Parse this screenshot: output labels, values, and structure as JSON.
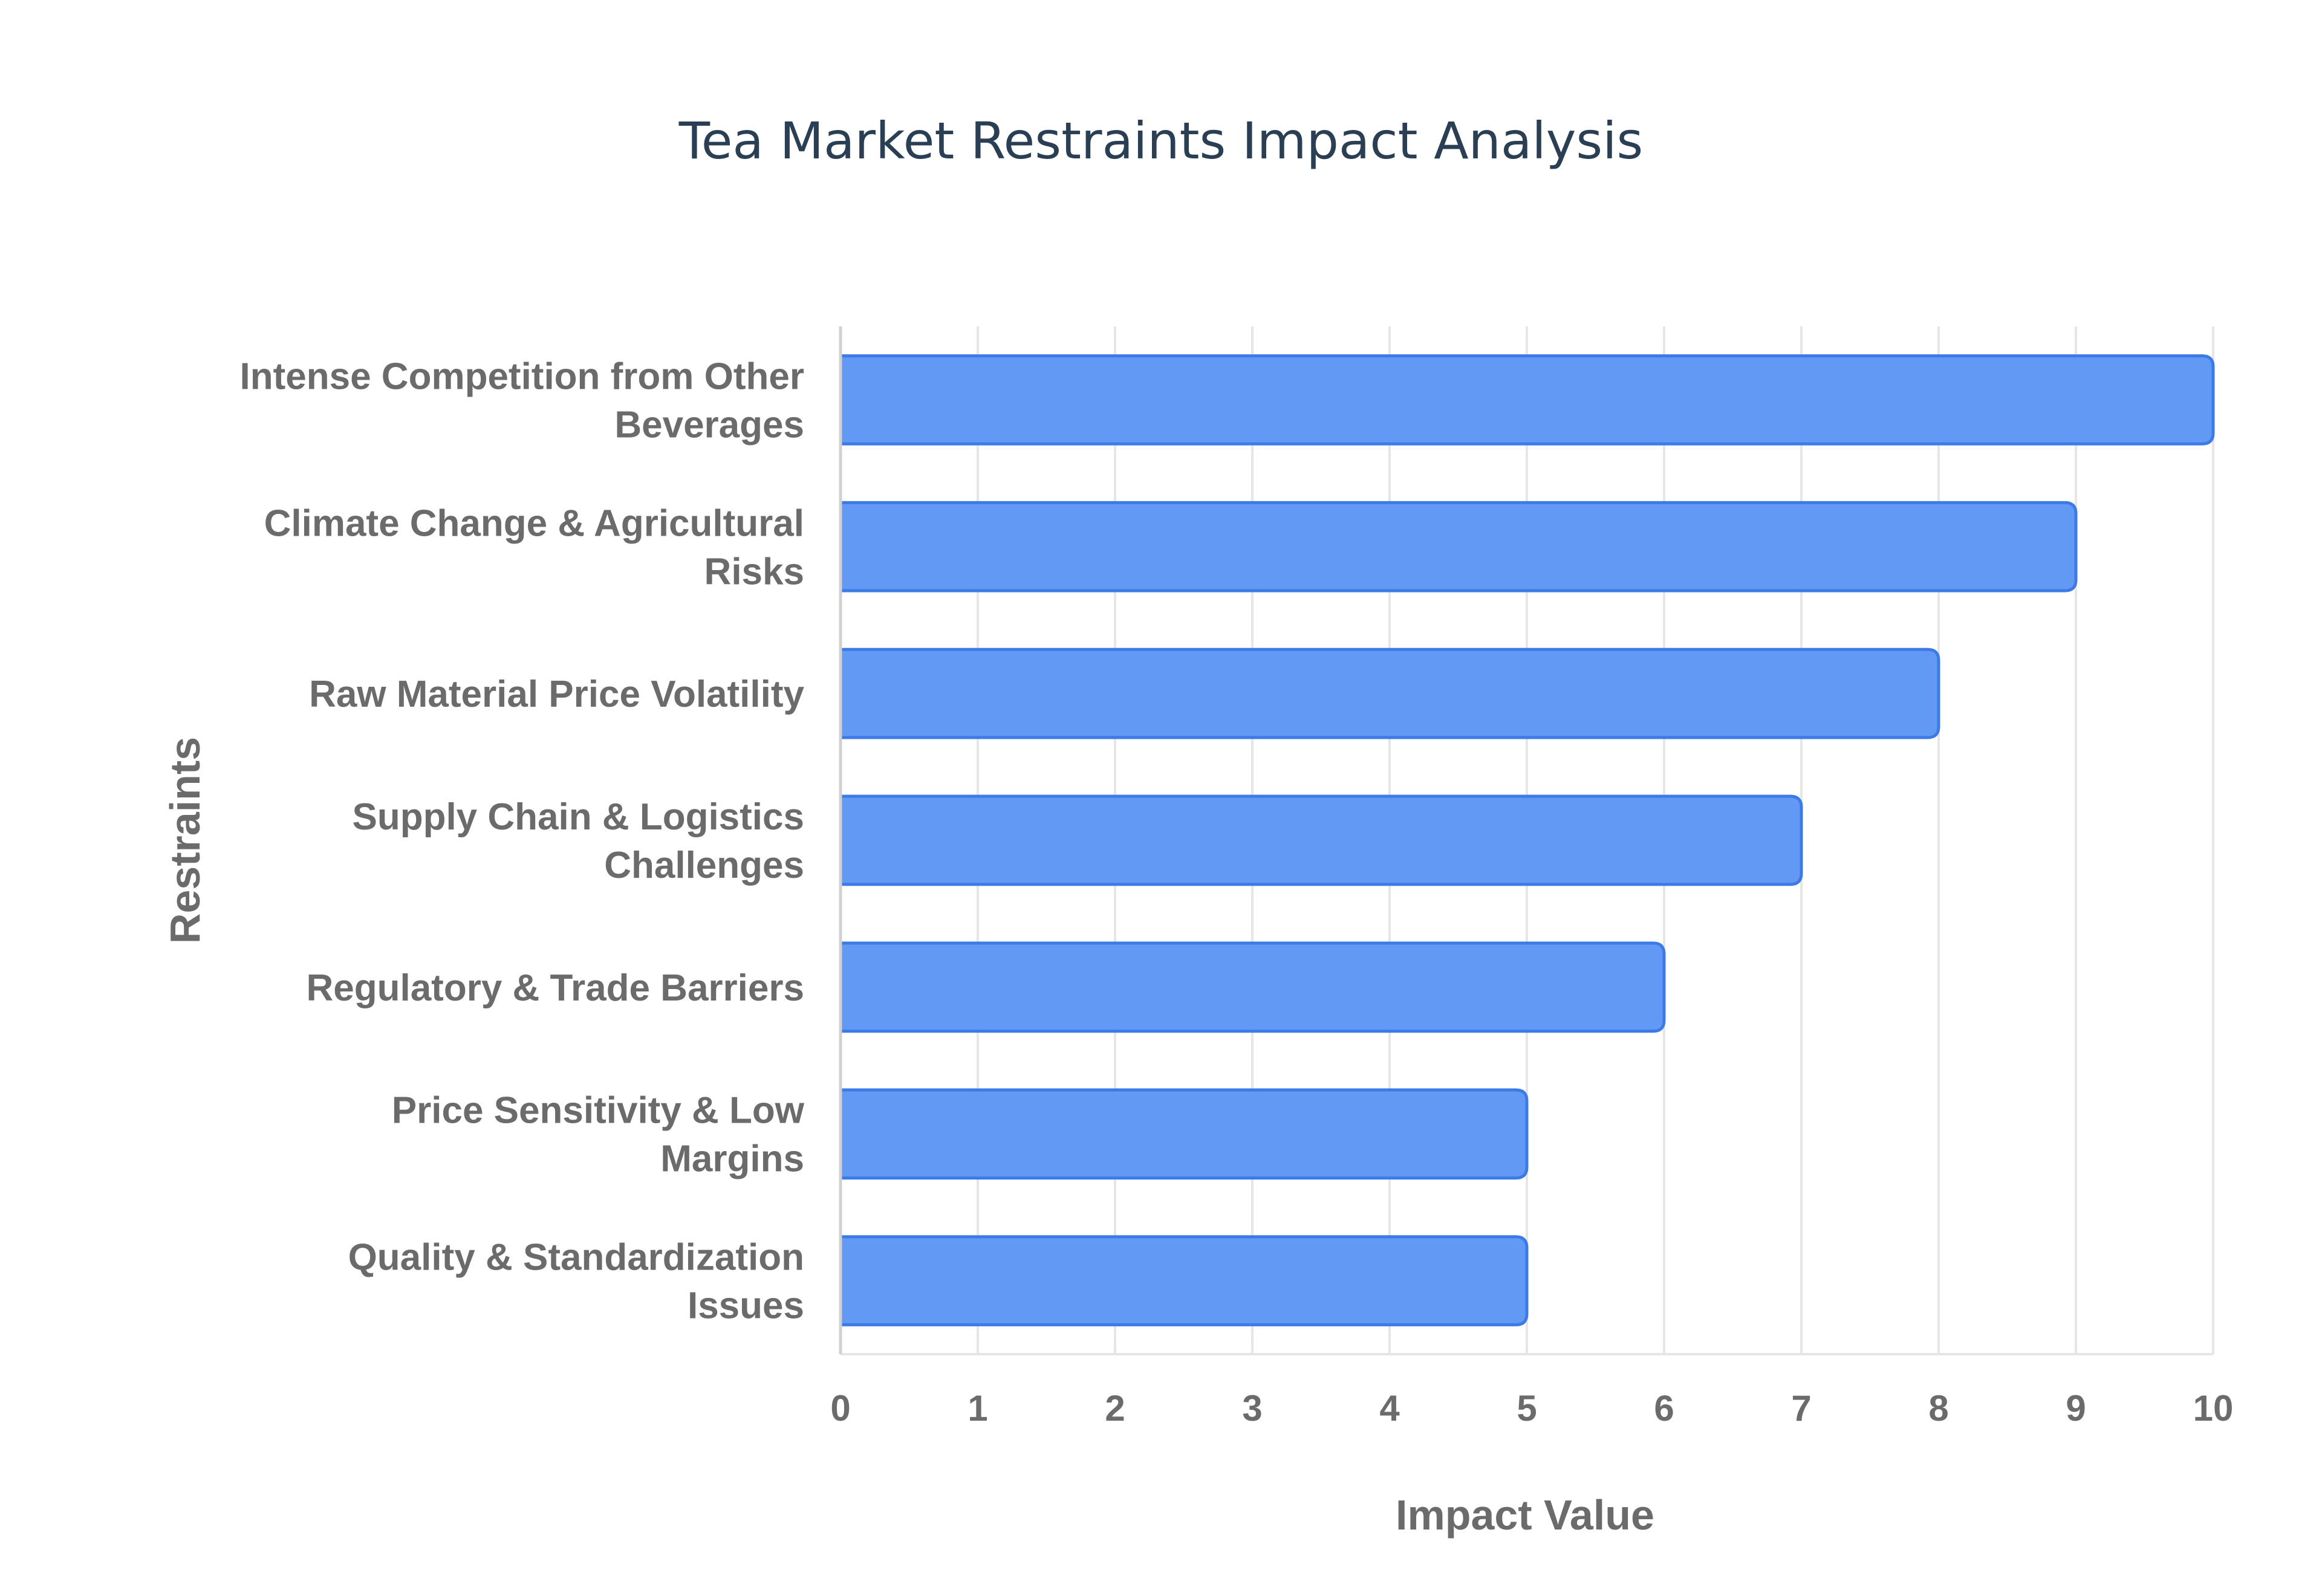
{
  "chart_data": {
    "type": "bar",
    "orientation": "horizontal",
    "title": "Tea Market Restraints Impact Analysis",
    "xlabel": "Impact Value",
    "ylabel": "Restraints",
    "xlim": [
      0,
      10
    ],
    "x_ticks": [
      "0",
      "1",
      "2",
      "3",
      "4",
      "5",
      "6",
      "7",
      "8",
      "9",
      "10"
    ],
    "grid": true,
    "categories": [
      [
        "Intense Competition from Other",
        "Beverages"
      ],
      [
        "Climate Change & Agricultural",
        "Risks"
      ],
      [
        "Raw Material Price Volatility"
      ],
      [
        "Supply Chain & Logistics",
        "Challenges"
      ],
      [
        "Regulatory & Trade Barriers"
      ],
      [
        "Price Sensitivity & Low",
        "Margins"
      ],
      [
        "Quality & Standardization",
        "Issues"
      ]
    ],
    "values": [
      10,
      9,
      8,
      7,
      6,
      5,
      5
    ],
    "colors": {
      "bar_fill": "#6199f5",
      "bar_stroke": "#3c7ae8",
      "title": "#2a3f54",
      "text": "#6b6b6b"
    }
  }
}
